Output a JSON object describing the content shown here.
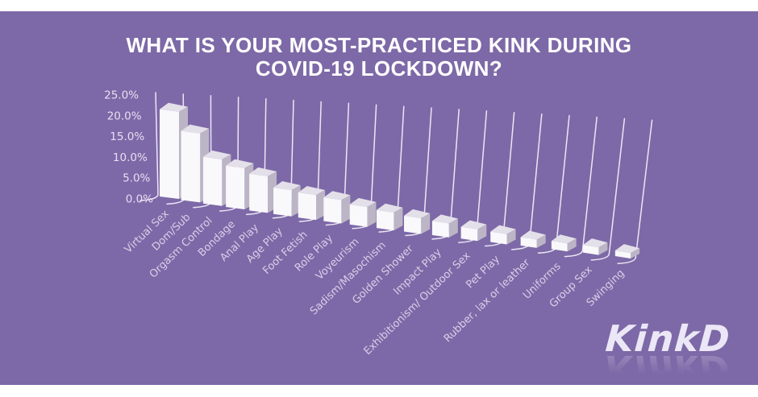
{
  "page": {
    "background": "#7d69a7",
    "frame": "#ffffff"
  },
  "title": {
    "line1": "WHAT IS YOUR MOST-PRACTICED KINK DURING",
    "line2": "COVID-19 LOCKDOWN?",
    "color": "#ffffff"
  },
  "brand": {
    "logo_text": "KinkD"
  },
  "chart_data": {
    "type": "bar",
    "projection": "3d-perspective",
    "title": "WHAT IS YOUR MOST-PRACTICED KINK DURING COVID-19 LOCKDOWN?",
    "categories": [
      "Virtual Sex",
      "Dom/Sub",
      "Orgasm Control",
      "Bondage",
      "Anal Play",
      "Age Play",
      "Foot Fetish",
      "Role Play",
      "Voyeurism",
      "Sadism/Masochism",
      "Golden Shower",
      "Impact Play",
      "Exhibitionism/ Outdoor Sex",
      "Pet Play",
      "Rubber, lax or leather",
      "Uniforms",
      "Group Sex",
      "Swinging"
    ],
    "values": [
      21.0,
      16.3,
      10.8,
      9.4,
      8.2,
      5.8,
      5.4,
      5.0,
      4.2,
      3.7,
      3.2,
      2.8,
      2.3,
      2.0,
      1.6,
      1.5,
      1.4,
      1.0
    ],
    "value_unit": "%",
    "y_ticks": [
      "25.0%",
      "20.0%",
      "15.0%",
      "10.0%",
      "5.0%",
      "0.0%"
    ],
    "ylim": [
      0,
      25
    ],
    "xlabel": "",
    "ylabel": "",
    "legend": "none",
    "grid": "vertical drop-line behind each category",
    "colors": {
      "bar_front": "#f9f8fb",
      "bar_top": "#e4e0ea",
      "bar_side": "#bcb5c6",
      "grid_line": "#ece6f4",
      "category_text": "#d9cfe9",
      "tick_text": "#e7dff2"
    }
  }
}
